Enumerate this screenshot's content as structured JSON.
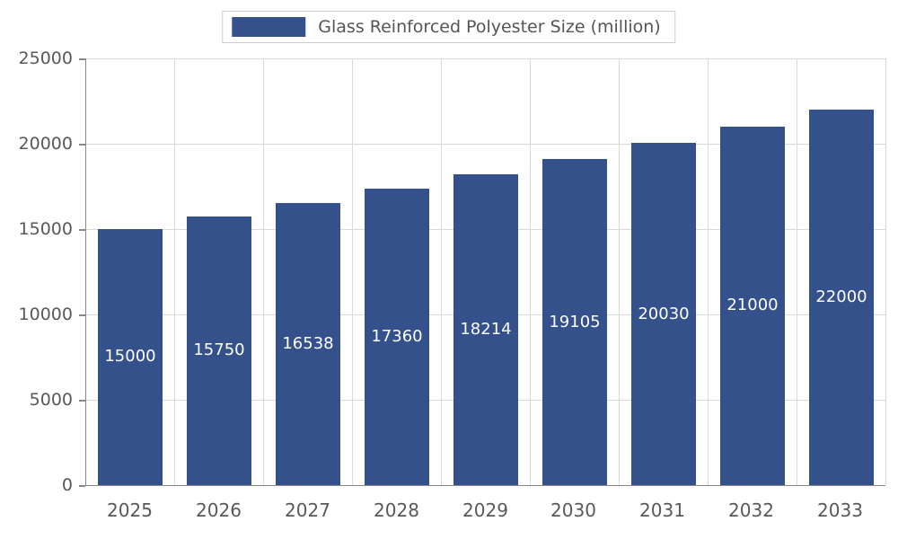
{
  "legend": {
    "label": "Glass Reinforced Polyester Size (million)",
    "swatch_color": "#34518c"
  },
  "chart_data": {
    "type": "bar",
    "title": "Glass Reinforced Polyester Size (million)",
    "categories": [
      "2025",
      "2026",
      "2027",
      "2028",
      "2029",
      "2030",
      "2031",
      "2032",
      "2033"
    ],
    "values": [
      15000,
      15750,
      16538,
      17360,
      18214,
      19105,
      20030,
      21000,
      22000
    ],
    "value_labels": [
      "15000",
      "15750",
      "16538",
      "17360",
      "18214",
      "19105",
      "20030",
      "21000",
      "22000"
    ],
    "xlabel": "",
    "ylabel": "",
    "ylim": [
      0,
      25000
    ],
    "yticks": [
      0,
      5000,
      10000,
      15000,
      20000,
      25000
    ],
    "ytick_labels": [
      "0",
      "5000",
      "10000",
      "15000",
      "20000",
      "25000"
    ],
    "bar_color": "#34518c",
    "value_label_color": "#ffffff",
    "grid": true,
    "legend_position": "top-center"
  }
}
